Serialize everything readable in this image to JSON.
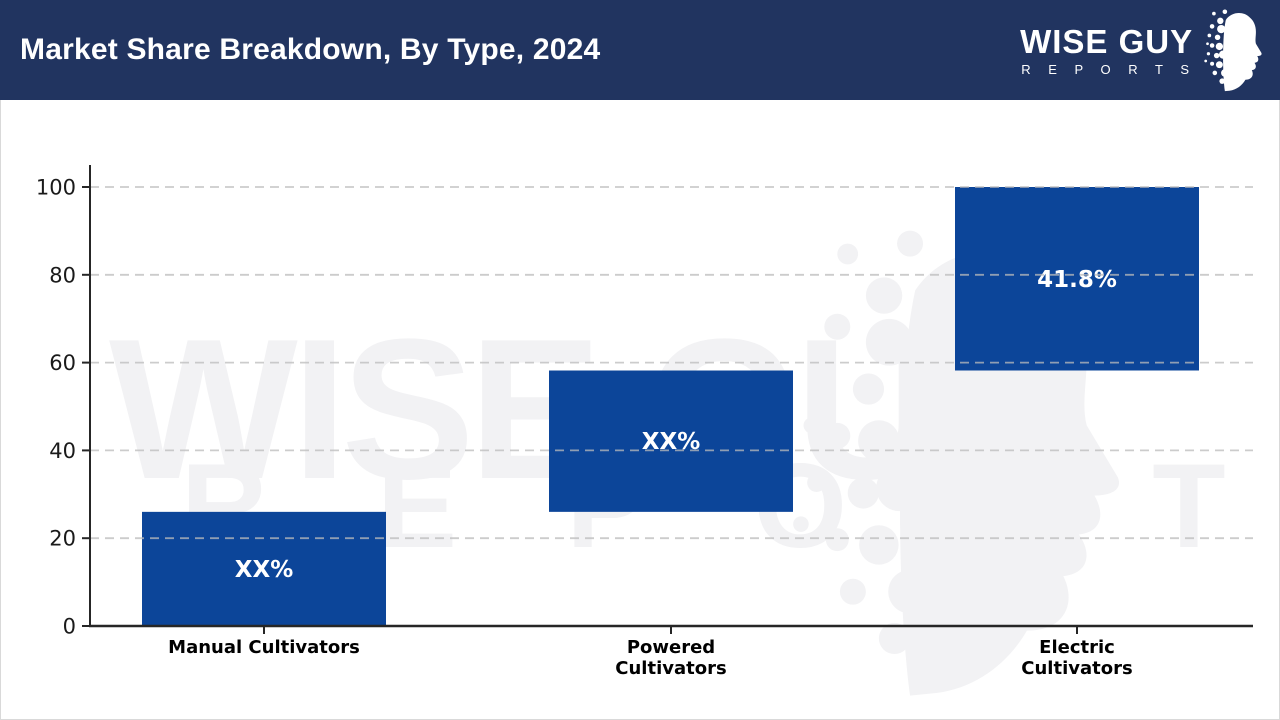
{
  "header": {
    "title": "Market Share Breakdown, By Type, 2024",
    "logo": {
      "name_line": "WISE GUY",
      "reports_line": "R E P O R T S"
    }
  },
  "watermark": {
    "name_line": "WISE GUY",
    "reports_line": "R E P O R T S"
  },
  "chart_data": {
    "type": "bar",
    "variant": "floating-segment-breakdown",
    "title": "Market Share Breakdown, By Type, 2024",
    "categories": [
      "Manual Cultivators",
      "Powered Cultivators",
      "Electric Cultivators"
    ],
    "category_label_lines": [
      [
        "Manual Cultivators"
      ],
      [
        "Powered",
        "Cultivators"
      ],
      [
        "Electric",
        "Cultivators"
      ]
    ],
    "segments": [
      {
        "category": "Manual Cultivators",
        "start": 0,
        "end": 26,
        "label": "XX%"
      },
      {
        "category": "Powered Cultivators",
        "start": 26,
        "end": 58.2,
        "label": "XX%"
      },
      {
        "category": "Electric Cultivators",
        "start": 58.2,
        "end": 100,
        "label": "41.8%"
      }
    ],
    "ylim": [
      0,
      100
    ],
    "yticks": [
      0,
      20,
      40,
      60,
      80,
      100
    ],
    "xlabel": "",
    "ylabel": "",
    "grid": {
      "axis": "y",
      "style": "dashed"
    },
    "legend": "none",
    "colors": {
      "bar": "#0c4599",
      "bar_label": "#ffffff",
      "axis": "#262626",
      "gridline": "#bcbcbc",
      "tick_label": "#1a1a1a",
      "category_label": "#000000"
    }
  },
  "theme": {
    "header_bg": "#213460",
    "page_bg": "#ffffff",
    "watermark_color": "#f2f2f4",
    "border_color": "#d9d9d9"
  }
}
